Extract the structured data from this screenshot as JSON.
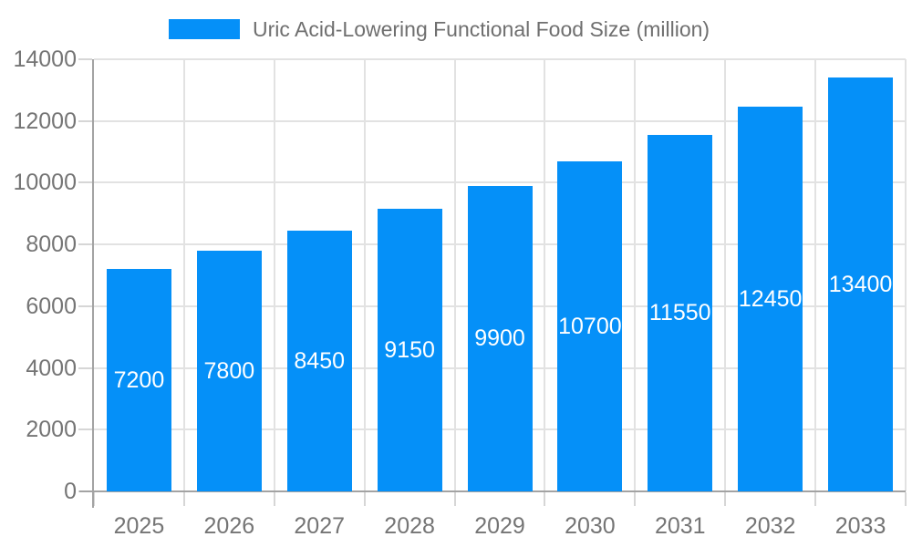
{
  "chart_data": {
    "type": "bar",
    "legend_label": "Uric Acid-Lowering Functional Food Size (million)",
    "legend_position": "top",
    "categories": [
      "2025",
      "2026",
      "2027",
      "2028",
      "2029",
      "2030",
      "2031",
      "2032",
      "2033"
    ],
    "values": [
      7200,
      7800,
      8450,
      9150,
      9900,
      10700,
      11550,
      12450,
      13400
    ],
    "yticks": [
      0,
      2000,
      4000,
      6000,
      8000,
      10000,
      12000,
      14000
    ],
    "ylim": [
      0,
      14000
    ],
    "grid": true,
    "xlabel": "",
    "ylabel": "",
    "colors": {
      "bar": "#0590F8",
      "axis_line": "#a3a3a3",
      "grid_line": "#e2e2e2",
      "tick_mark": "#d6d6d6",
      "tick_label": "#757575",
      "legend_text": "#6f6f6f",
      "bar_label": "#ffffff",
      "background": "#ffffff"
    }
  }
}
